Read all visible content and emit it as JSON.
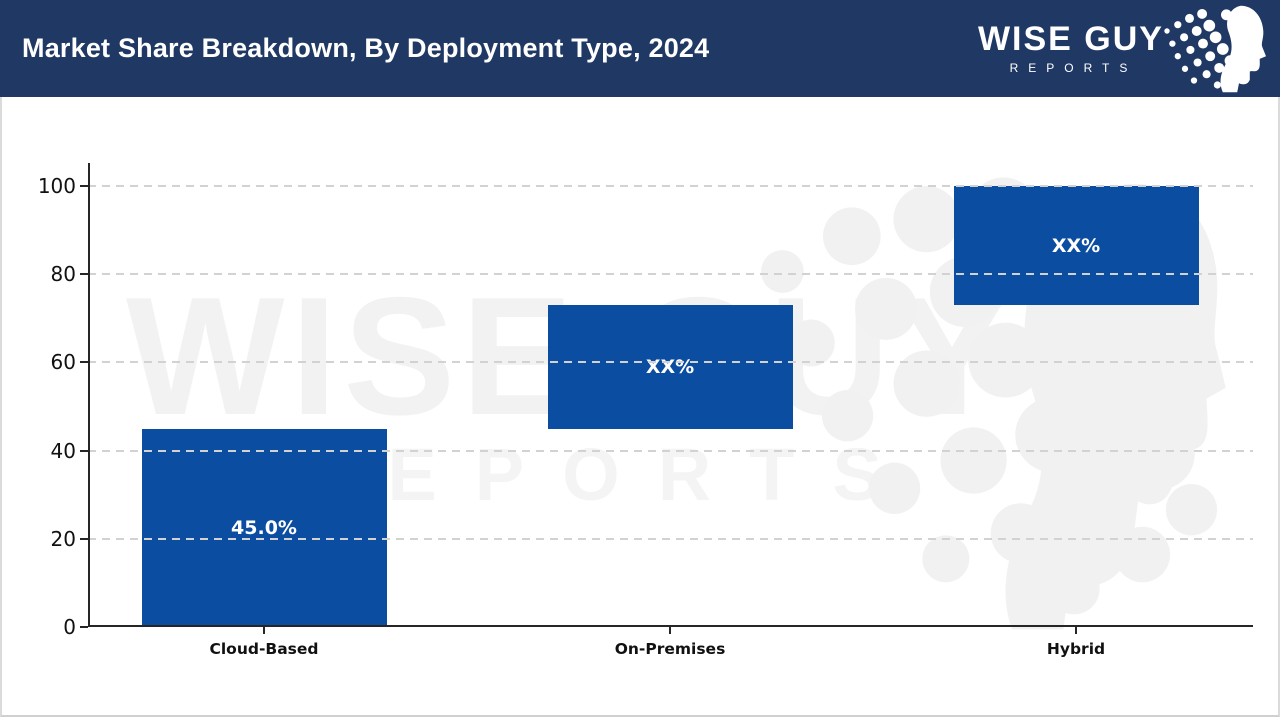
{
  "header": {
    "title": "Market Share Breakdown, By Deployment Type, 2024",
    "logo": {
      "line1": "WISE GUY",
      "line2": "REPORTS"
    }
  },
  "watermark": {
    "line1": "WISE GUY",
    "line2": "REPORTS"
  },
  "chart_data": {
    "type": "bar",
    "subtype": "floating-waterfall",
    "title": "Market Share Breakdown, By Deployment Type, 2024",
    "categories": [
      "Cloud-Based",
      "On-Premises",
      "Hybrid"
    ],
    "series": [
      {
        "name": "Market Share (%)",
        "segments": [
          {
            "category": "Cloud-Based",
            "start": 0,
            "end": 45,
            "label": "45.0%"
          },
          {
            "category": "On-Premises",
            "start": 45,
            "end": 73,
            "label": "XX%"
          },
          {
            "category": "Hybrid",
            "start": 73,
            "end": 100,
            "label": "XX%"
          }
        ]
      }
    ],
    "xlabel": "",
    "ylabel": "",
    "ylim": [
      0,
      100
    ],
    "yticks": [
      0,
      20,
      40,
      60,
      80,
      100
    ],
    "grid": "horizontal-dashed",
    "grid_over_bars": true,
    "legend": "none",
    "bar_color": "#0b4da1",
    "bar_label_color": "#ffffff",
    "axis_color": "#262626",
    "gridline_color": "#d2d2d2"
  },
  "colors": {
    "header_bg": "#203864",
    "title_text": "#ffffff",
    "watermark": "#f2f2f2",
    "card_border": "#dadada"
  }
}
